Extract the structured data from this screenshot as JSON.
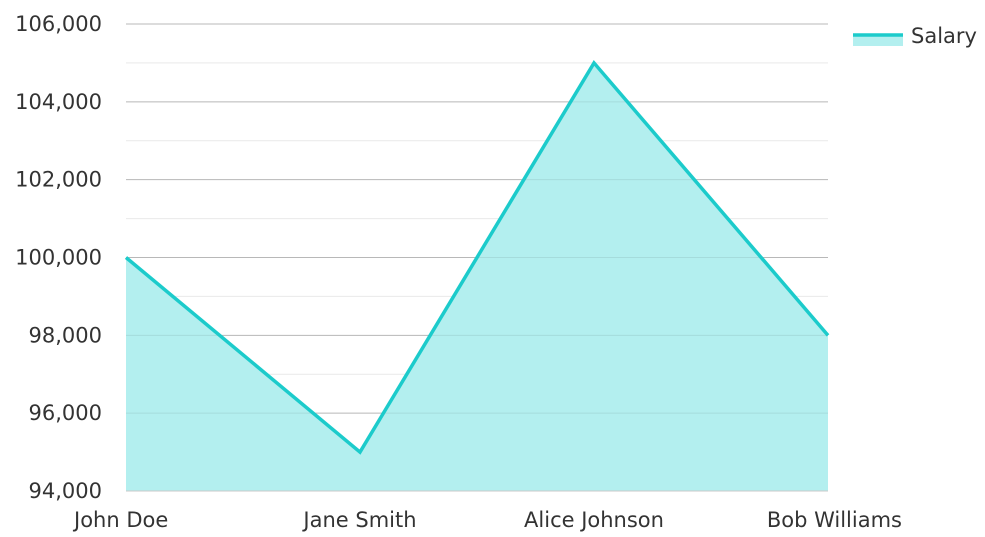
{
  "chart_data": {
    "type": "area",
    "categories": [
      "John Doe",
      "Jane Smith",
      "Alice Johnson",
      "Bob Williams"
    ],
    "series": [
      {
        "name": "Salary",
        "values": [
          100000,
          95000,
          105000,
          98000
        ]
      }
    ],
    "ylim": [
      94000,
      106000
    ],
    "yticks": [
      94000,
      96000,
      98000,
      100000,
      102000,
      104000,
      106000
    ],
    "ytick_labels": [
      "94,000",
      "96,000",
      "98,000",
      "100,000",
      "102,000",
      "104,000",
      "106,000"
    ],
    "grid": true,
    "legend": "top-right",
    "colors": {
      "line": "#1ccbcb",
      "fill": "#b3efef",
      "grid_major": "#c8c8c8",
      "grid_minor": "#e9e9e9"
    }
  }
}
